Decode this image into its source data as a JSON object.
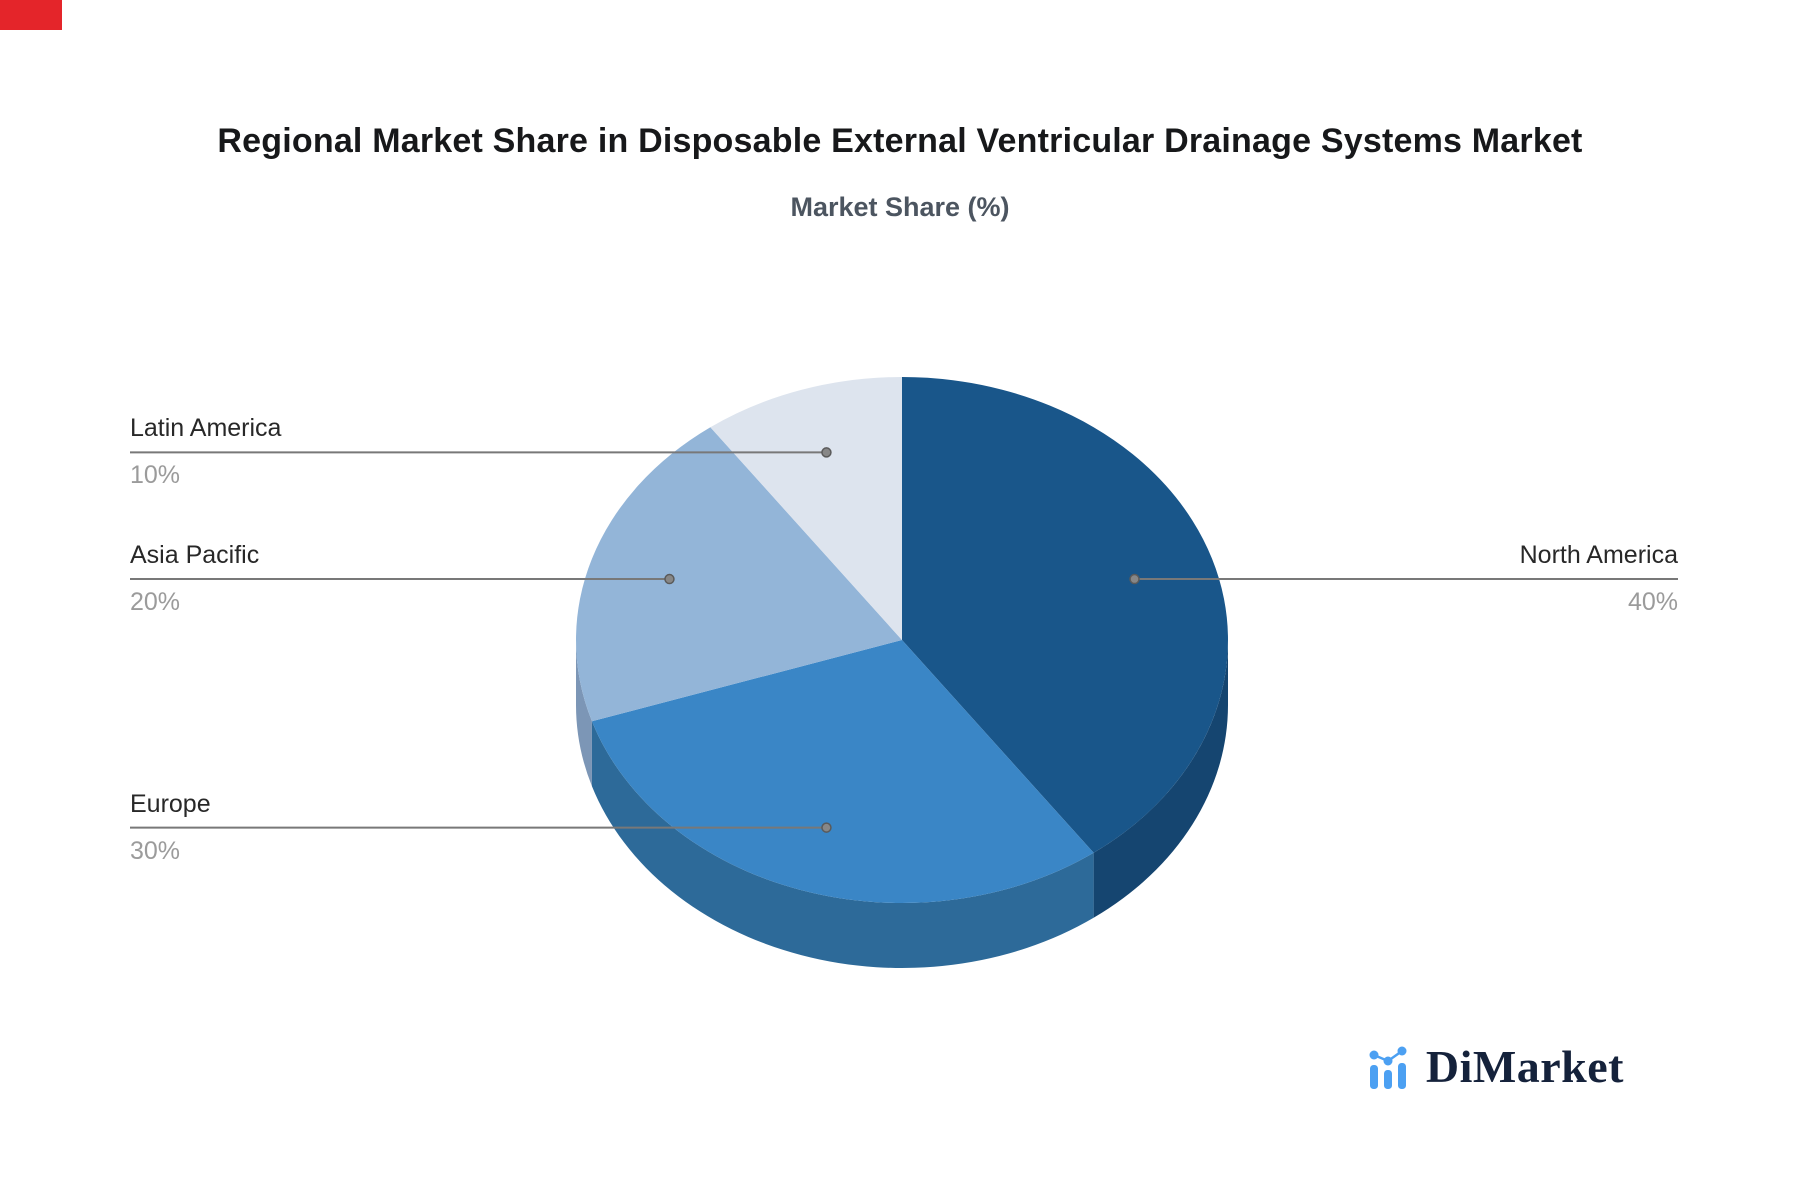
{
  "header": {
    "title": "Regional Market Share in Disposable External Ventricular Drainage Systems Market",
    "subtitle": "Market Share (%)"
  },
  "chart_data": {
    "type": "pie",
    "style": "3d",
    "title": "Regional Market Share in Disposable External Ventricular Drainage Systems Market",
    "subtitle": "Market Share (%)",
    "unit": "%",
    "start_angle": "top",
    "direction": "clockwise",
    "legend_position": "none",
    "slices": [
      {
        "label": "North America",
        "value": 40,
        "display": "40%",
        "color": "#19568A",
        "side_color": "#154570",
        "label_side": "right"
      },
      {
        "label": "Europe",
        "value": 30,
        "display": "30%",
        "color": "#3A86C6",
        "side_color": "#2D6A99",
        "label_side": "left"
      },
      {
        "label": "Asia Pacific",
        "value": 20,
        "display": "20%",
        "color": "#93B5D8",
        "side_color": "#7C96B6",
        "label_side": "left"
      },
      {
        "label": "Latin America",
        "value": 10,
        "display": "10%",
        "color": "#DDE4EE",
        "side_color": "#B9C3D2",
        "label_side": "left"
      }
    ],
    "leader_line_color": "#787878",
    "leader_dot_color": "#878787",
    "label_color": "#282828",
    "value_color": "#9B9B9B"
  },
  "branding": {
    "logo_text": "DiMarket",
    "logo_text_color": "#15223B",
    "logo_icon": "bar-chart-with-trend-dots",
    "logo_icon_color": "#4CA0F2"
  },
  "decorations": {
    "corner_mark_color": "#E4252A"
  }
}
